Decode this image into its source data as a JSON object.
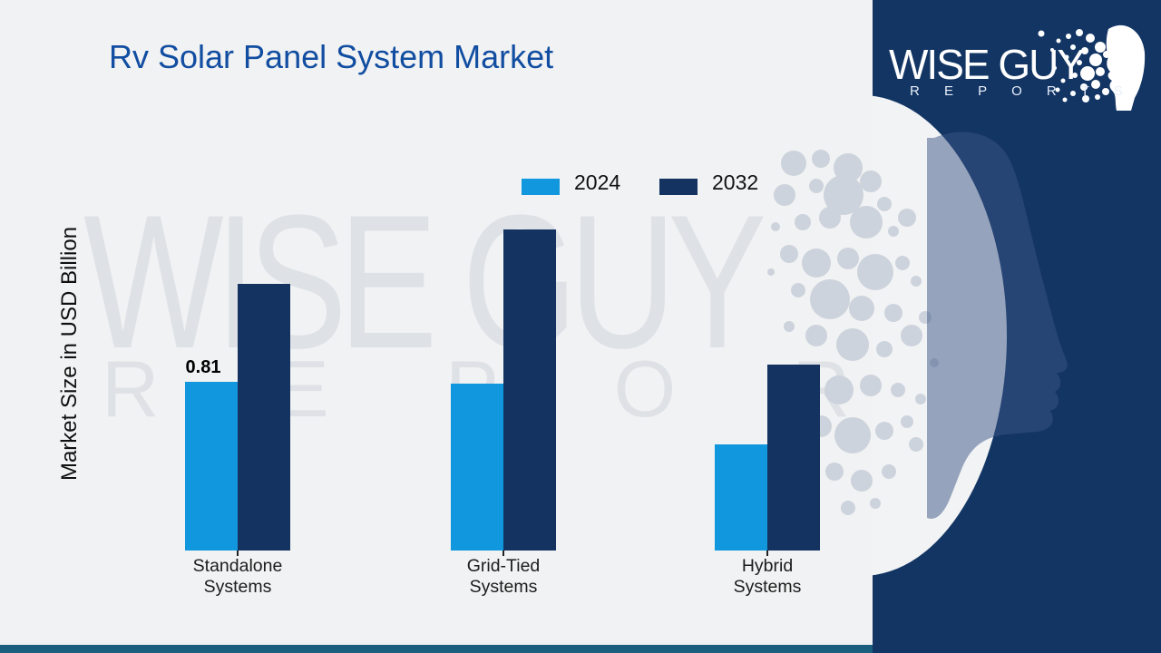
{
  "title": {
    "text": "Rv Solar Panel System Market",
    "color": "#114da1"
  },
  "legend": {
    "items": [
      {
        "label": "2024",
        "color": "#1097dd"
      },
      {
        "label": "2032",
        "color": "#143361"
      }
    ]
  },
  "watermark": {
    "line1": "WISE GUY",
    "line2": "R E P O R T S"
  },
  "brand_panel": {
    "name": "WISE GUY",
    "sub": "R E P O R T S",
    "panel_color": "#123564",
    "accent_bar_color": "#1a5f7e"
  },
  "chart_data": {
    "type": "bar",
    "title": "Rv Solar Panel System Market",
    "xlabel": "",
    "ylabel": "Market Size in USD Billion",
    "unit": "USD Billion",
    "categories": [
      "Standalone Systems",
      "Grid-Tied Systems",
      "Hybrid Systems"
    ],
    "series": [
      {
        "name": "2024",
        "color": "#1097dd",
        "values": [
          0.81,
          0.8,
          0.51
        ]
      },
      {
        "name": "2032",
        "color": "#143361",
        "values": [
          1.28,
          1.54,
          0.89
        ]
      }
    ],
    "data_labels": [
      {
        "series": "2024",
        "category": "Standalone Systems",
        "text": "0.81"
      }
    ],
    "ylim": [
      0,
      1.75
    ],
    "grid": false,
    "axis_lines": false,
    "legend_position": "top-right"
  }
}
